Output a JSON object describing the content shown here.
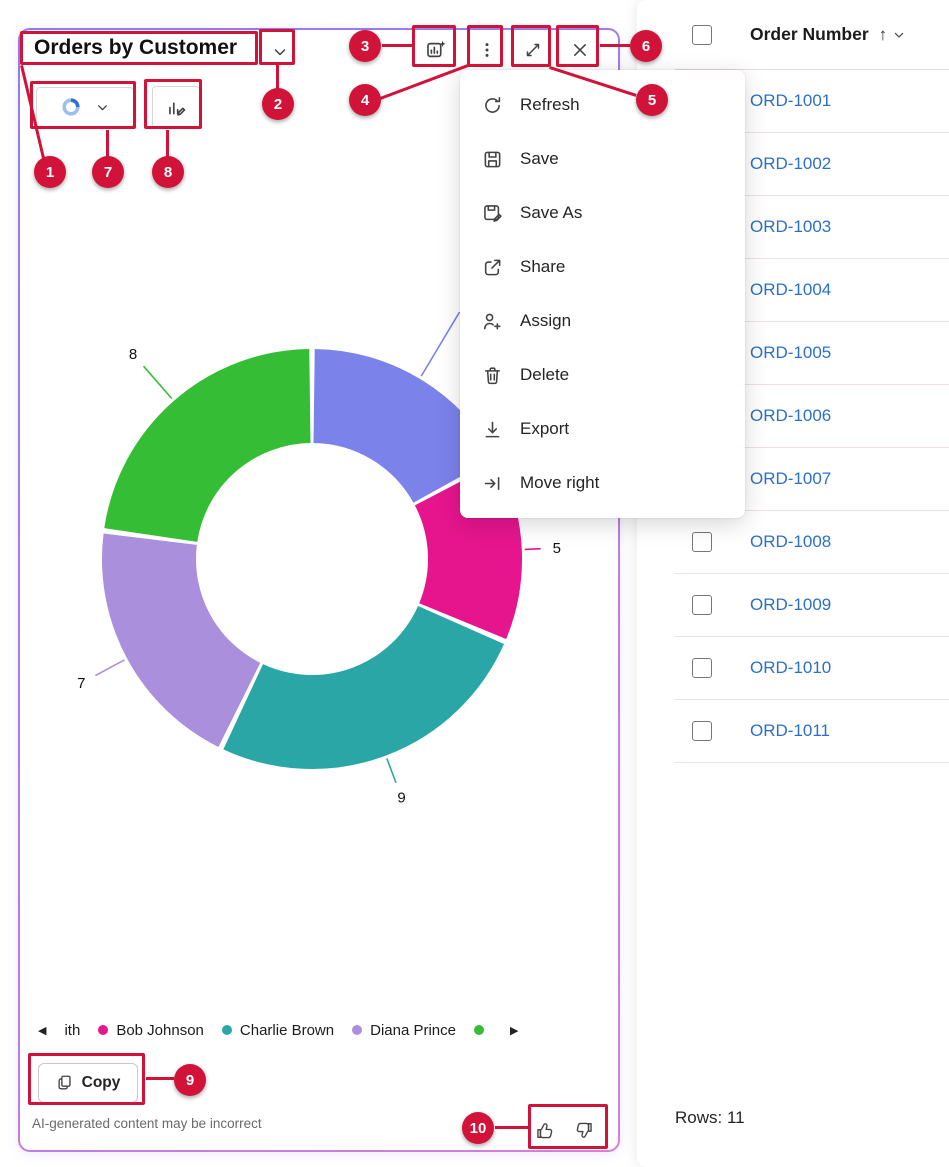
{
  "annotations": {
    "color": "#d21339",
    "badges": [
      "1",
      "2",
      "3",
      "4",
      "5",
      "6",
      "7",
      "8",
      "9",
      "10"
    ]
  },
  "panel": {
    "title": "Orders by Customer",
    "copy_button_label": "Copy",
    "ai_disclaimer": "AI-generated content may be incorrect",
    "border_color_start": "#8e7bf0",
    "border_color_end": "#d67fd8"
  },
  "menu": {
    "items": [
      {
        "icon": "refresh-icon",
        "label": "Refresh"
      },
      {
        "icon": "save-icon",
        "label": "Save"
      },
      {
        "icon": "save-as-icon",
        "label": "Save As"
      },
      {
        "icon": "share-icon",
        "label": "Share"
      },
      {
        "icon": "assign-icon",
        "label": "Assign"
      },
      {
        "icon": "delete-icon",
        "label": "Delete"
      },
      {
        "icon": "export-icon",
        "label": "Export"
      },
      {
        "icon": "move-right-icon",
        "label": "Move right"
      }
    ]
  },
  "legend": {
    "prev_arrow": "◀",
    "next_arrow": "▶",
    "items": [
      {
        "label": "ith",
        "color": ""
      },
      {
        "label": "Bob Johnson",
        "color": "#e6158d"
      },
      {
        "label": "Charlie Brown",
        "color": "#2aa6a6"
      },
      {
        "label": "Diana Prince",
        "color": "#a98fdc"
      },
      {
        "label": "",
        "color": "#35bd35"
      }
    ]
  },
  "chart_data": {
    "type": "pie",
    "donut": true,
    "title": "Orders by Customer",
    "categories": [
      "ith",
      "Bob Johnson",
      "Charlie Brown",
      "Diana Prince",
      ""
    ],
    "values": [
      6,
      5,
      9,
      7,
      8
    ],
    "colors": [
      "#7b82ea",
      "#e6158d",
      "#2aa6a6",
      "#a98fdc",
      "#35bd35"
    ],
    "data_labels": [
      "",
      "5",
      "9",
      "7",
      "8"
    ],
    "legend_position": "bottom"
  },
  "table": {
    "column_header": "Order Number",
    "sort_icon": "arrow-up-icon",
    "link_color": "#2b70c8",
    "rows": [
      "ORD-1001",
      "ORD-1002",
      "ORD-1003",
      "ORD-1004",
      "ORD-1005",
      "ORD-1006",
      "ORD-1007",
      "ORD-1008",
      "ORD-1009",
      "ORD-1010",
      "ORD-1011"
    ],
    "rows_count_label": "Rows: 11"
  }
}
